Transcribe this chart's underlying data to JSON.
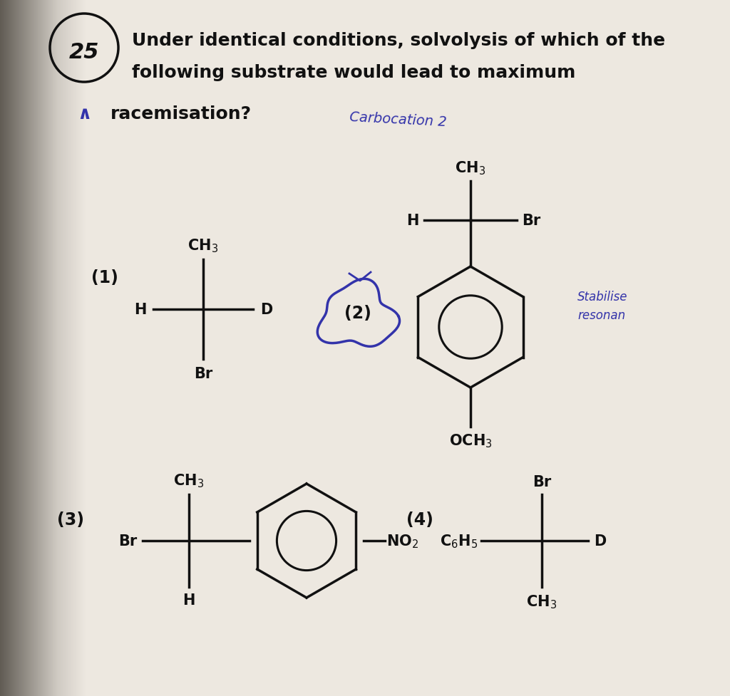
{
  "bg_color": "#e8e4dc",
  "bg_left_dark": "#b0a898",
  "text_color": "#111111",
  "blue_ink": "#3333aa",
  "struct_color": "#111111",
  "lw": 2.2,
  "title_fs": 19,
  "label_fs": 17,
  "chem_fs": 15,
  "sub_fs": 12,
  "q_number": "25",
  "line1": "Under identical conditions, solvolysis of which of the",
  "line2": "following substrate would lead to maximum",
  "line3": "racemisation?",
  "handwritten1": "Carbocation 2",
  "handwritten2": "Stabilise\nresonan"
}
